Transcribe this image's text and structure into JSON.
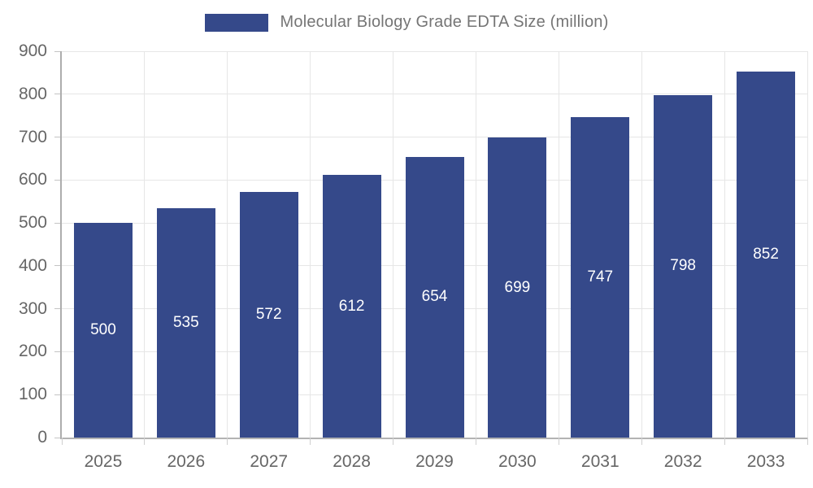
{
  "chart_data": {
    "type": "bar",
    "title": "Molecular Biology Grade EDTA Size (million)",
    "categories": [
      "2025",
      "2026",
      "2027",
      "2028",
      "2029",
      "2030",
      "2031",
      "2032",
      "2033"
    ],
    "values": [
      500,
      535,
      572,
      612,
      654,
      699,
      747,
      798,
      852
    ],
    "xlabel": "",
    "ylabel": "",
    "ylim": [
      0,
      900
    ],
    "yticks": [
      0,
      100,
      200,
      300,
      400,
      500,
      600,
      700,
      800,
      900
    ],
    "grid": true,
    "legend_position": "top",
    "bar_color": "#35498A",
    "bar_label_color": "#FFFFFF",
    "axis_label_color": "#666666",
    "title_color": "#757575",
    "grid_color": "#E6E6E6"
  }
}
